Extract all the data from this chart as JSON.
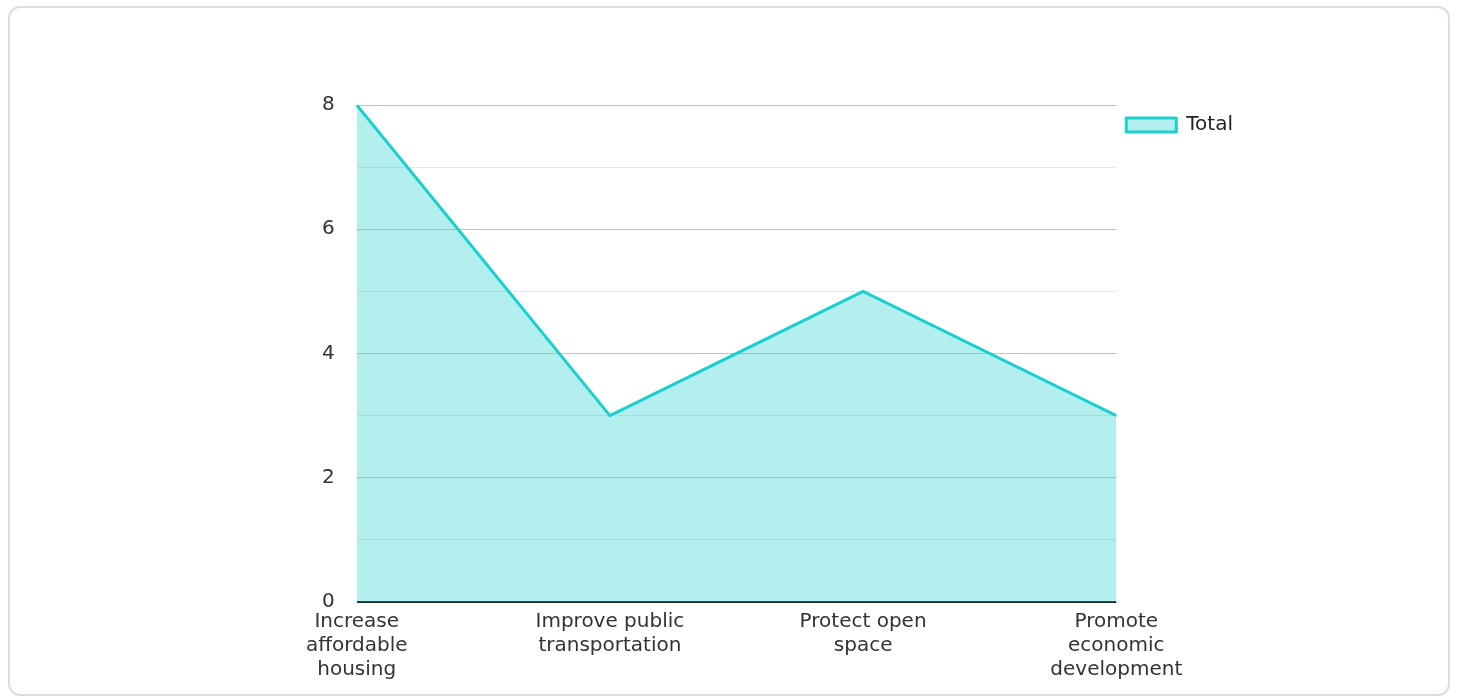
{
  "chart_data": {
    "type": "area",
    "categories": [
      "Increase affordable housing",
      "Improve public transportation",
      "Protect open space",
      "Promote economic development"
    ],
    "series": [
      {
        "name": "Total",
        "color": "#1ccfcf",
        "values": [
          8,
          3,
          5,
          3
        ]
      }
    ],
    "ylim": [
      0,
      8
    ],
    "yticks": [
      0,
      {
        "value": 1,
        "label": null
      },
      2,
      {
        "value": 3,
        "label": null
      },
      4,
      {
        "value": 5,
        "label": null
      },
      6,
      {
        "value": 7,
        "label": null
      },
      8
    ],
    "grid": "y",
    "legend": "top right"
  }
}
